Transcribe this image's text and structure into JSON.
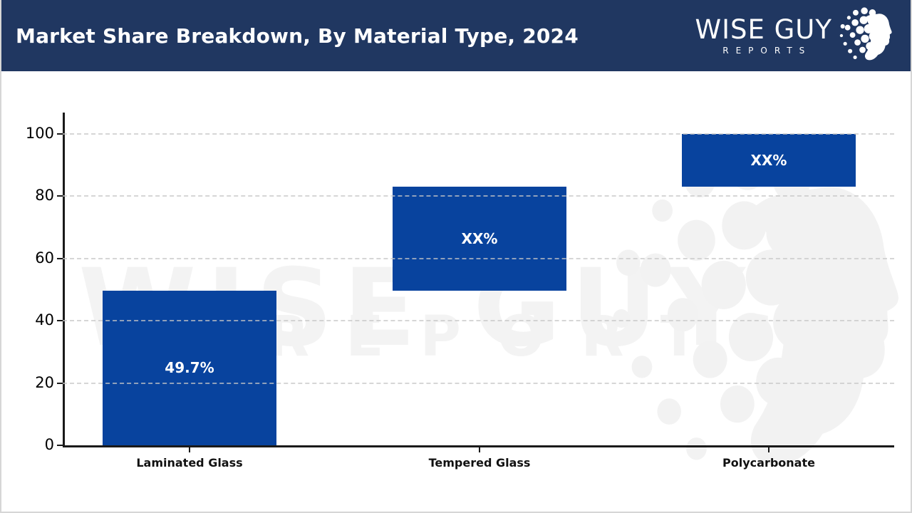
{
  "header": {
    "title": "Market Share Breakdown, By Material Type, 2024",
    "bg_color": "#203761",
    "text_color": "#ffffff",
    "logo": {
      "line1": "WISE GUY",
      "line2": "REPORTS",
      "icon": "dotted-head-icon"
    }
  },
  "watermark": {
    "line1": "WISE GUY",
    "line2": "R E P O R T S",
    "color": "#f3f3f3",
    "head_icon": "dotted-head-watermark"
  },
  "chart_data": {
    "type": "bar",
    "variant": "waterfall-floating-bars",
    "title": "Market Share Breakdown, By Material Type, 2024",
    "categories": [
      "Laminated Glass",
      "Tempered Glass",
      "Polycarbonate"
    ],
    "segments": [
      {
        "category": "Laminated Glass",
        "start": 0,
        "end": 49.7,
        "label": "49.7%"
      },
      {
        "category": "Tempered Glass",
        "start": 49.7,
        "end": 83,
        "label": "XX%"
      },
      {
        "category": "Polycarbonate",
        "start": 83,
        "end": 100,
        "label": "XX%"
      }
    ],
    "xlabel": "",
    "ylabel": "",
    "ylim": [
      0,
      100
    ],
    "yticks": [
      0,
      20,
      40,
      60,
      80,
      100
    ],
    "grid": "horizontal dashed, drawn over bars",
    "legend": "none",
    "bar_color": "#08439e",
    "bar_label_color": "#ffffff",
    "axis_color": "#1a1a1a",
    "gridline_color": "#c6c6c6"
  }
}
